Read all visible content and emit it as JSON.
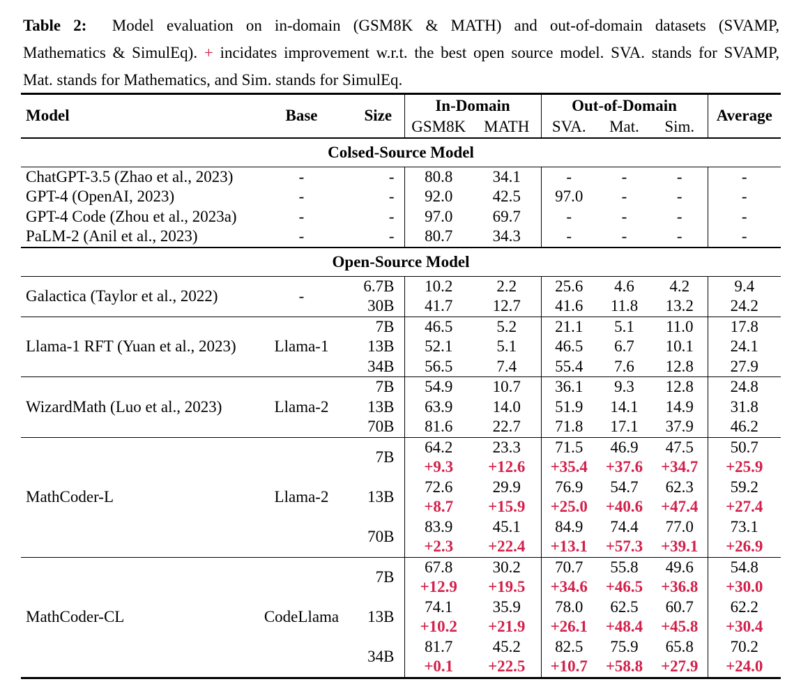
{
  "colors": {
    "accent_red": "#d2204a"
  },
  "caption": {
    "line1_bold": "Table 2:",
    "line1_rest": "Model evaluation on in-domain (GSM8K & MATH) and out-of-domain datasets (SVAMP,",
    "line2_before_plus": "Mathematics & SimulEq).",
    "plus": "+",
    "line2_after_plus": "incidates improvement w.r.t. the best open source model. SVA. stands for SVAMP,",
    "line3": "Mat. stands for Mathematics, and Sim. stands for SimulEq."
  },
  "table": {
    "header": {
      "model": "Model",
      "base": "Base",
      "size": "Size",
      "in_domain": "In-Domain",
      "out_of_domain": "Out-of-Domain",
      "average": "Average",
      "sub": [
        "GSM8K",
        "MATH",
        "SVA.",
        "Mat.",
        "Sim."
      ]
    },
    "sections": [
      {
        "title": "Colsed-Source Model",
        "groups": [
          {
            "model": "ChatGPT-3.5 (Zhao et al., 2023)",
            "base": "-",
            "rows": [
              {
                "size": "-",
                "values": [
                  "80.8",
                  "34.1",
                  "-",
                  "-",
                  "-",
                  "-"
                ]
              }
            ]
          },
          {
            "model": "GPT-4 (OpenAI, 2023)",
            "base": "-",
            "rows": [
              {
                "size": "-",
                "values": [
                  "92.0",
                  "42.5",
                  "97.0",
                  "-",
                  "-",
                  "-"
                ]
              }
            ]
          },
          {
            "model": "GPT-4 Code (Zhou et al., 2023a)",
            "base": "-",
            "rows": [
              {
                "size": "-",
                "values": [
                  "97.0",
                  "69.7",
                  "-",
                  "-",
                  "-",
                  "-"
                ]
              }
            ]
          },
          {
            "model": "PaLM-2 (Anil et al., 2023)",
            "base": "-",
            "rows": [
              {
                "size": "-",
                "values": [
                  "80.7",
                  "34.3",
                  "-",
                  "-",
                  "-",
                  "-"
                ]
              }
            ]
          }
        ]
      },
      {
        "title": "Open-Source Model",
        "groups": [
          {
            "model": "Galactica (Taylor et al., 2022)",
            "base": "-",
            "rows": [
              {
                "size": "6.7B",
                "values": [
                  "10.2",
                  "2.2",
                  "25.6",
                  "4.6",
                  "4.2",
                  "9.4"
                ]
              },
              {
                "size": "30B",
                "values": [
                  "41.7",
                  "12.7",
                  "41.6",
                  "11.8",
                  "13.2",
                  "24.2"
                ]
              }
            ]
          },
          {
            "model": "Llama-1 RFT (Yuan et al., 2023)",
            "base": "Llama-1",
            "rows": [
              {
                "size": "7B",
                "values": [
                  "46.5",
                  "5.2",
                  "21.1",
                  "5.1",
                  "11.0",
                  "17.8"
                ]
              },
              {
                "size": "13B",
                "values": [
                  "52.1",
                  "5.1",
                  "46.5",
                  "6.7",
                  "10.1",
                  "24.1"
                ]
              },
              {
                "size": "34B",
                "values": [
                  "56.5",
                  "7.4",
                  "55.4",
                  "7.6",
                  "12.8",
                  "27.9"
                ]
              }
            ]
          },
          {
            "model": "WizardMath (Luo et al., 2023)",
            "base": "Llama-2",
            "rows": [
              {
                "size": "7B",
                "values": [
                  "54.9",
                  "10.7",
                  "36.1",
                  "9.3",
                  "12.8",
                  "24.8"
                ]
              },
              {
                "size": "13B",
                "values": [
                  "63.9",
                  "14.0",
                  "51.9",
                  "14.1",
                  "14.9",
                  "31.8"
                ]
              },
              {
                "size": "70B",
                "values": [
                  "81.6",
                  "22.7",
                  "71.8",
                  "17.1",
                  "37.9",
                  "46.2"
                ]
              }
            ]
          },
          {
            "model": "MathCoder-L",
            "base": "Llama-2",
            "rows": [
              {
                "size": "7B",
                "values": [
                  "64.2",
                  "23.3",
                  "71.5",
                  "46.9",
                  "47.5",
                  "50.7"
                ],
                "delta": [
                  "+9.3",
                  "+12.6",
                  "+35.4",
                  "+37.6",
                  "+34.7",
                  "+25.9"
                ]
              },
              {
                "size": "13B",
                "values": [
                  "72.6",
                  "29.9",
                  "76.9",
                  "54.7",
                  "62.3",
                  "59.2"
                ],
                "delta": [
                  "+8.7",
                  "+15.9",
                  "+25.0",
                  "+40.6",
                  "+47.4",
                  "+27.4"
                ]
              },
              {
                "size": "70B",
                "values": [
                  "83.9",
                  "45.1",
                  "84.9",
                  "74.4",
                  "77.0",
                  "73.1"
                ],
                "delta": [
                  "+2.3",
                  "+22.4",
                  "+13.1",
                  "+57.3",
                  "+39.1",
                  "+26.9"
                ]
              }
            ]
          },
          {
            "model": "MathCoder-CL",
            "base": "CodeLlama",
            "rows": [
              {
                "size": "7B",
                "values": [
                  "67.8",
                  "30.2",
                  "70.7",
                  "55.8",
                  "49.6",
                  "54.8"
                ],
                "delta": [
                  "+12.9",
                  "+19.5",
                  "+34.6",
                  "+46.5",
                  "+36.8",
                  "+30.0"
                ]
              },
              {
                "size": "13B",
                "values": [
                  "74.1",
                  "35.9",
                  "78.0",
                  "62.5",
                  "60.7",
                  "62.2"
                ],
                "delta": [
                  "+10.2",
                  "+21.9",
                  "+26.1",
                  "+48.4",
                  "+45.8",
                  "+30.4"
                ]
              },
              {
                "size": "34B",
                "values": [
                  "81.7",
                  "45.2",
                  "82.5",
                  "75.9",
                  "65.8",
                  "70.2"
                ],
                "delta": [
                  "+0.1",
                  "+22.5",
                  "+10.7",
                  "+58.8",
                  "+27.9",
                  "+24.0"
                ]
              }
            ]
          }
        ]
      }
    ]
  }
}
